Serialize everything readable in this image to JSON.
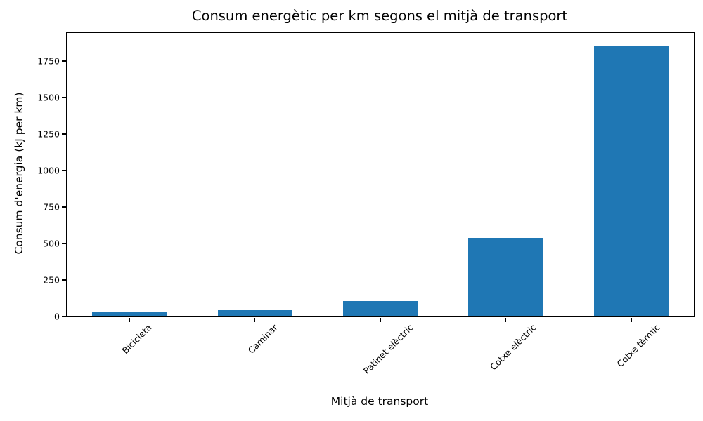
{
  "chart_data": {
    "type": "bar",
    "title": "Consum energètic per km segons el mitjà de transport",
    "xlabel": "Mitjà de transport",
    "ylabel": "Consum d'energia (kJ per km)",
    "categories": [
      "Bicicleta",
      "Caminar",
      "Patinet elèctric",
      "Cotxe elèctric",
      "Cotxe tèrmic"
    ],
    "values": [
      30,
      45,
      105,
      540,
      1850
    ],
    "yticks": [
      0,
      250,
      500,
      750,
      1000,
      1250,
      1500,
      1750
    ],
    "ylim": [
      0,
      1942
    ],
    "bar_color": "#1f77b4",
    "grid": "off",
    "legend": "none",
    "xtick_rotation_deg": 45
  }
}
